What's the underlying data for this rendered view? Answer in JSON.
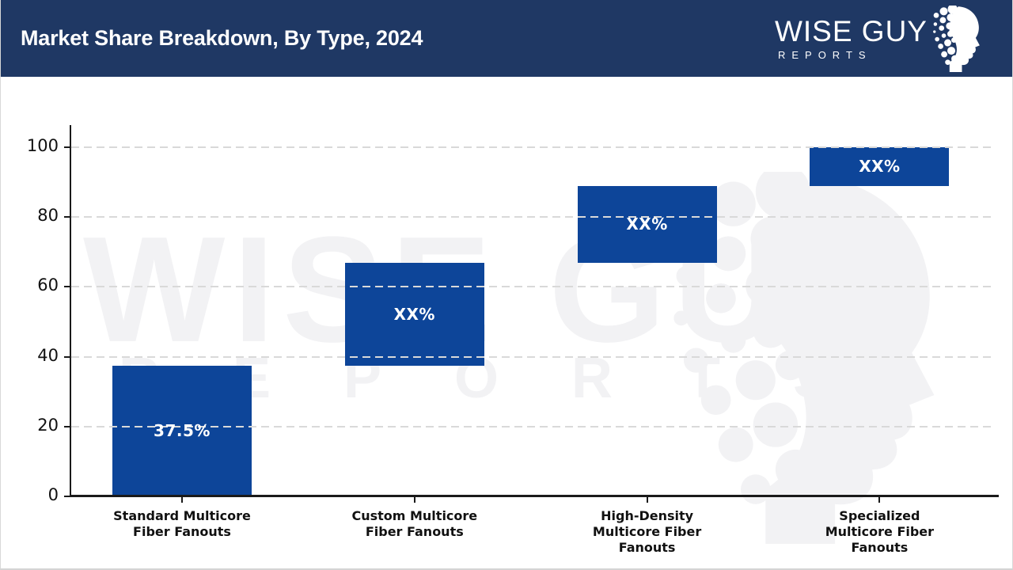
{
  "header": {
    "title": "Market Share Breakdown, By Type, 2024",
    "logo": {
      "line1": "WISE GUY",
      "line2": "REPORTS"
    }
  },
  "watermark": {
    "line1": "WISE GUY",
    "line2": "REPORTS"
  },
  "chart_data": {
    "type": "waterfall",
    "title": "Market Share Breakdown, By Type, 2024",
    "categories": [
      [
        "Standard Multicore",
        "Fiber Fanouts"
      ],
      [
        "Custom Multicore",
        "Fiber Fanouts"
      ],
      [
        "High-Density",
        "Multicore Fiber",
        "Fanouts"
      ],
      [
        "Specialized",
        "Multicore Fiber",
        "Fanouts"
      ]
    ],
    "segments": [
      {
        "start": 0,
        "end": 37.5,
        "label": "37.5%"
      },
      {
        "start": 37.5,
        "end": 67,
        "label": "XX%"
      },
      {
        "start": 67,
        "end": 89,
        "label": "XX%"
      },
      {
        "start": 89,
        "end": 100,
        "label": "XX%"
      }
    ],
    "ylim": [
      0,
      100
    ],
    "yticks": [
      0,
      20,
      40,
      60,
      80,
      100
    ],
    "grid": {
      "axis": "y",
      "style": "dashed",
      "color": "#d9d9d9",
      "drawn_over_bars": true
    },
    "bar_color": "#0d4599",
    "value_label_color": "#ffffff",
    "legend": null
  },
  "colors": {
    "header_bg": "#1f3864",
    "accent_blue": "#0d4599",
    "axis": "#1a1a1a",
    "grid": "#d9d9d9",
    "watermark": "#f2f2f4"
  }
}
